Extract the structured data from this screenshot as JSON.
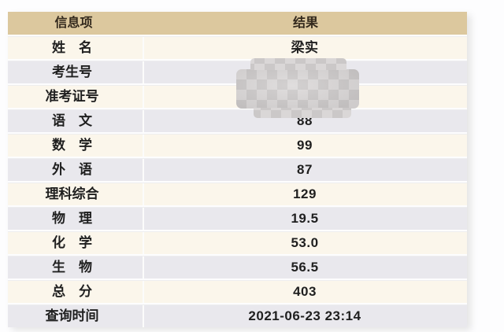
{
  "table": {
    "header": {
      "info_label": "信息项",
      "result_label": "结果"
    },
    "rows": [
      {
        "label": "姓　名",
        "value": "梁实",
        "masked": false
      },
      {
        "label": "考生号",
        "value": "",
        "masked": true
      },
      {
        "label": "准考证号",
        "value": "",
        "masked": true
      },
      {
        "label": "语　文",
        "value": "88",
        "masked": false
      },
      {
        "label": "数　学",
        "value": "99",
        "masked": false
      },
      {
        "label": "外　语",
        "value": "87",
        "masked": false
      },
      {
        "label": "理科综合",
        "value": "129",
        "masked": false
      },
      {
        "label": "物　理",
        "value": "19.5",
        "masked": false
      },
      {
        "label": "化　学",
        "value": "53.0",
        "masked": false
      },
      {
        "label": "生　物",
        "value": "56.5",
        "masked": false
      },
      {
        "label": "总　分",
        "value": "403",
        "masked": false
      },
      {
        "label": "查询时间",
        "value": "2021-06-23 23:14",
        "masked": false
      }
    ]
  },
  "colors": {
    "page_bg": "#fdfdfe",
    "header_bg": "#dcc89e",
    "header_text": "#33291d",
    "row_cream": "#fbf6eb",
    "row_gray": "#e9e8ed",
    "row_text": "#1f1f1f",
    "divider": "#fcfcfb",
    "mosaic_dark": "#cbc8c8",
    "mosaic_light": "#dad7d7"
  }
}
